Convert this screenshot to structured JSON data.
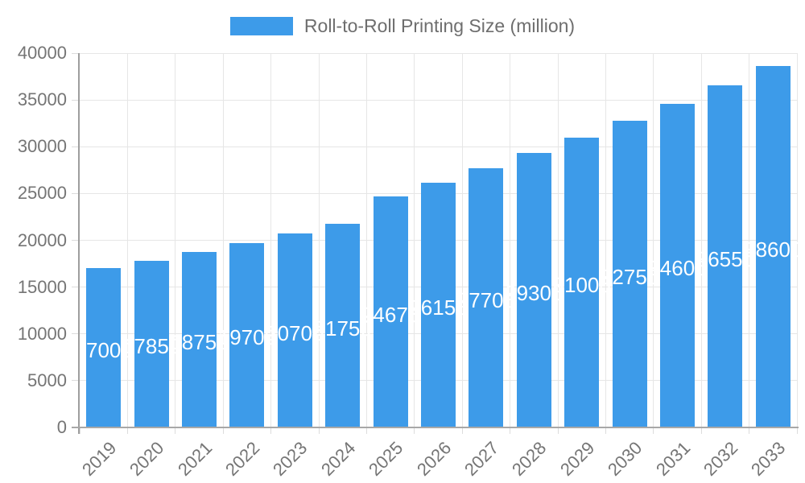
{
  "legend": {
    "label": "Roll-to-Roll Printing Size (million)"
  },
  "colors": {
    "bar": "#3d9be9",
    "bar_value_label": "#ffffff",
    "axis_text": "#757575",
    "legend_text": "#6e6e6e",
    "gridline": "#e6e6e6",
    "axis_line": "#9e9e9e"
  },
  "chart_data": {
    "type": "bar",
    "title": "",
    "legend_label": "Roll-to-Roll Printing Size (million)",
    "legend_position": "top",
    "categories": [
      "2019",
      "2020",
      "2021",
      "2022",
      "2023",
      "2024",
      "2025",
      "2026",
      "2027",
      "2028",
      "2029",
      "2030",
      "2031",
      "2032",
      "2033"
    ],
    "values": [
      17000,
      17850,
      18750,
      19700,
      20700,
      21750,
      24675,
      26150,
      27700,
      29300,
      31000,
      32750,
      34600,
      36550,
      38600
    ],
    "value_labels_shown": true,
    "xlabel": "",
    "ylabel": "",
    "ylim": [
      0,
      40000
    ],
    "ytick_step": 5000,
    "yticks": [
      0,
      5000,
      10000,
      15000,
      20000,
      25000,
      30000,
      35000,
      40000
    ],
    "grid": true,
    "x_label_rotation_deg": -45
  }
}
